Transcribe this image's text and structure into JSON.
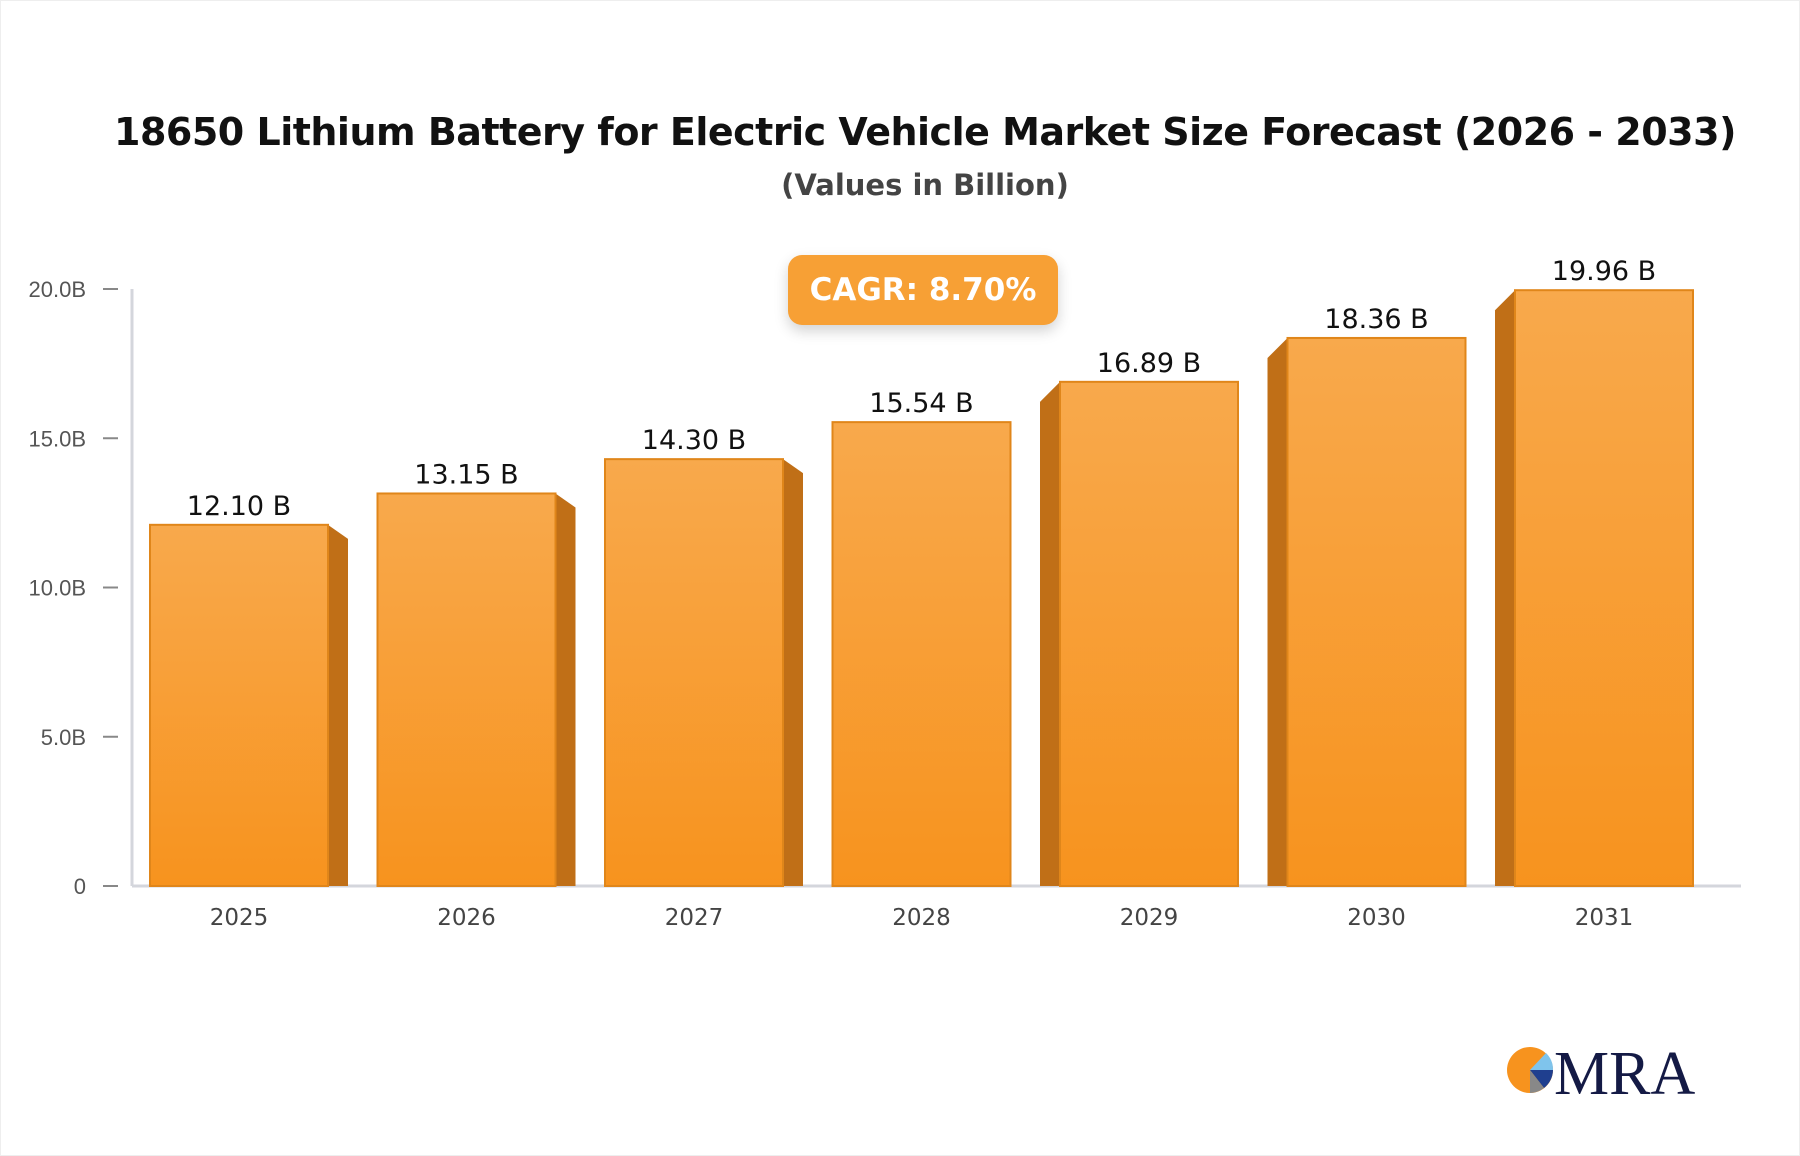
{
  "chart_data": {
    "type": "bar",
    "title": "18650 Lithium Battery for Electric Vehicle Market Size Forecast (2026 - 2033)",
    "subtitle": "(Values in Billion)",
    "categories": [
      "2025",
      "2026",
      "2027",
      "2028",
      "2029",
      "2030",
      "2031"
    ],
    "values": [
      12.1,
      13.15,
      14.3,
      15.54,
      16.89,
      18.36,
      19.96
    ],
    "data_labels": [
      "12.10 B",
      "13.15 B",
      "14.30 B",
      "15.54 B",
      "16.89 B",
      "18.36 B",
      "19.96 B"
    ],
    "yticks": [
      0,
      5,
      10,
      15,
      20
    ],
    "ytick_labels": [
      "0",
      "5.0B",
      "10.0B",
      "15.0B",
      "20.0B"
    ],
    "ylim": [
      0,
      20
    ],
    "grid": false,
    "bar_color": "#f7a035",
    "bar_side_color": "#c06f17",
    "annotation": "CAGR: 8.70%"
  },
  "logo": {
    "text": "MRA",
    "colors": [
      "#f7931e",
      "#1a1f4e",
      "#7fc4ec"
    ]
  }
}
